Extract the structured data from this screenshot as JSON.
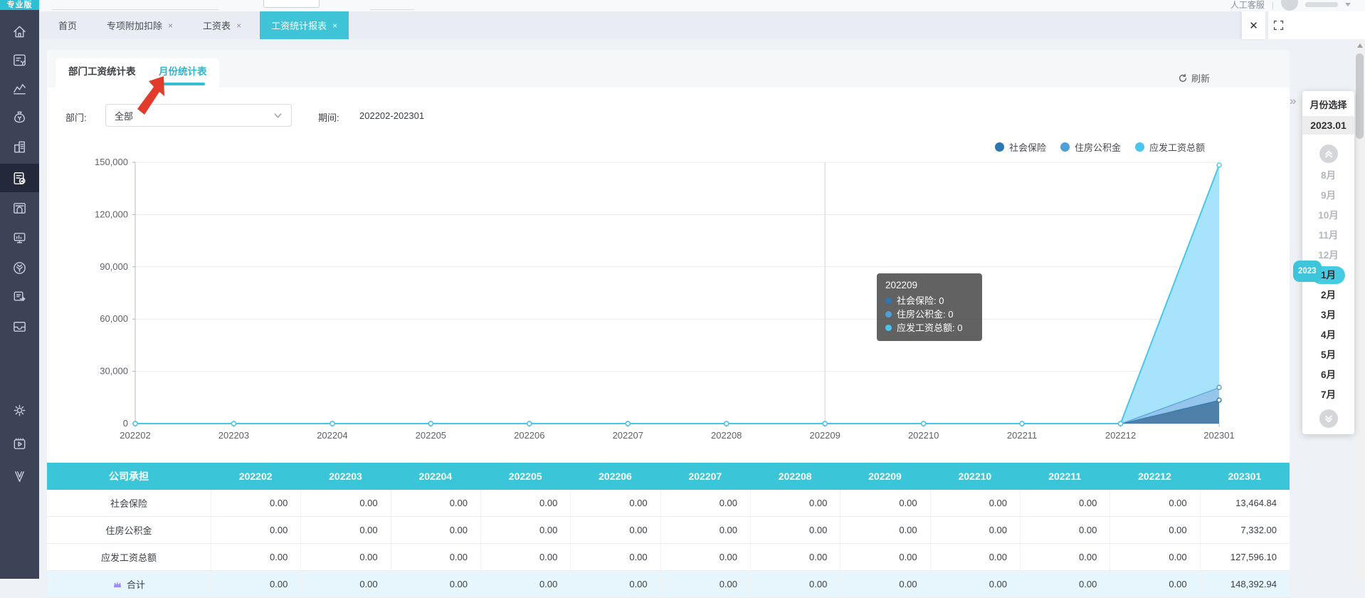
{
  "app": {
    "edition_badge": "专业版"
  },
  "topbar": {
    "service_label": "人工客服"
  },
  "tabs": [
    {
      "label": "首页",
      "closable": false,
      "active": false
    },
    {
      "label": "专项附加扣除",
      "closable": true,
      "active": false
    },
    {
      "label": "工资表",
      "closable": true,
      "active": false
    },
    {
      "label": "工资统计报表",
      "closable": true,
      "active": true
    }
  ],
  "icons": {
    "close_glyph": "✕",
    "collapse_glyph": "»"
  },
  "subtabs": [
    {
      "label": "部门工资统计表",
      "active": false
    },
    {
      "label": "月份统计表",
      "active": true
    }
  ],
  "toolbar": {
    "refresh_label": "刷新"
  },
  "filters": {
    "dept_label": "部门:",
    "dept_value": "全部",
    "period_label": "期间:",
    "period_value": "202202-202301"
  },
  "chart_data": {
    "type": "area",
    "stacked": true,
    "grid": true,
    "legend_position": "top-right",
    "categories": [
      "202202",
      "202203",
      "202204",
      "202205",
      "202206",
      "202207",
      "202208",
      "202209",
      "202210",
      "202211",
      "202212",
      "202301"
    ],
    "series": [
      {
        "name": "社会保险",
        "color": "#2d76ae",
        "fill": "#4579a5",
        "values": [
          0,
          0,
          0,
          0,
          0,
          0,
          0,
          0,
          0,
          0,
          0,
          13464.84
        ]
      },
      {
        "name": "住房公积金",
        "color": "#4f9fd8",
        "fill": "#8fc2e9",
        "values": [
          0,
          0,
          0,
          0,
          0,
          0,
          0,
          0,
          0,
          0,
          0,
          7332.0
        ]
      },
      {
        "name": "应发工资总额",
        "color": "#49c6f0",
        "fill": "#a2e3fb",
        "values": [
          0,
          0,
          0,
          0,
          0,
          0,
          0,
          0,
          0,
          0,
          0,
          127596.1
        ]
      }
    ],
    "ylim": [
      0,
      150000
    ],
    "yticks": [
      0,
      30000,
      60000,
      90000,
      120000,
      150000
    ],
    "hover": {
      "index": 7,
      "category": "202209",
      "values": [
        "0",
        "0",
        "0"
      ]
    }
  },
  "table": {
    "columns": [
      "公司承担",
      "202202",
      "202203",
      "202204",
      "202205",
      "202206",
      "202207",
      "202208",
      "202209",
      "202210",
      "202211",
      "202212",
      "202301"
    ],
    "rows": [
      {
        "label": "社会保险",
        "total": false,
        "values": [
          "0.00",
          "0.00",
          "0.00",
          "0.00",
          "0.00",
          "0.00",
          "0.00",
          "0.00",
          "0.00",
          "0.00",
          "0.00",
          "13,464.84"
        ]
      },
      {
        "label": "住房公积金",
        "total": false,
        "values": [
          "0.00",
          "0.00",
          "0.00",
          "0.00",
          "0.00",
          "0.00",
          "0.00",
          "0.00",
          "0.00",
          "0.00",
          "0.00",
          "7,332.00"
        ]
      },
      {
        "label": "应发工资总额",
        "total": false,
        "values": [
          "0.00",
          "0.00",
          "0.00",
          "0.00",
          "0.00",
          "0.00",
          "0.00",
          "0.00",
          "0.00",
          "0.00",
          "0.00",
          "127,596.10"
        ]
      },
      {
        "label": "合计",
        "total": true,
        "values": [
          "0.00",
          "0.00",
          "0.00",
          "0.00",
          "0.00",
          "0.00",
          "0.00",
          "0.00",
          "0.00",
          "0.00",
          "0.00",
          "148,392.94"
        ]
      }
    ]
  },
  "month_panel": {
    "title": "月份选择",
    "current": "2023.01",
    "year_badge": "2023",
    "months": [
      {
        "label": "8月",
        "state": "disabled"
      },
      {
        "label": "9月",
        "state": "disabled"
      },
      {
        "label": "10月",
        "state": "disabled"
      },
      {
        "label": "11月",
        "state": "disabled"
      },
      {
        "label": "12月",
        "state": "disabled"
      },
      {
        "label": "1月",
        "state": "active"
      },
      {
        "label": "2月",
        "state": "normal"
      },
      {
        "label": "3月",
        "state": "normal"
      },
      {
        "label": "4月",
        "state": "normal"
      },
      {
        "label": "5月",
        "state": "normal"
      },
      {
        "label": "6月",
        "state": "normal"
      },
      {
        "label": "7月",
        "state": "normal"
      }
    ]
  },
  "sidebar": {
    "active_index": 5,
    "items": [
      {
        "icon": "home"
      },
      {
        "icon": "voucher"
      },
      {
        "icon": "reports"
      },
      {
        "icon": "funds"
      },
      {
        "icon": "company"
      },
      {
        "icon": "salary-report"
      },
      {
        "icon": "bank"
      },
      {
        "icon": "terminal"
      },
      {
        "icon": "tax"
      },
      {
        "icon": "transfer"
      },
      {
        "icon": "archive"
      },
      {
        "icon": "settings"
      },
      {
        "icon": "video-help"
      },
      {
        "icon": "brand-v"
      }
    ]
  }
}
